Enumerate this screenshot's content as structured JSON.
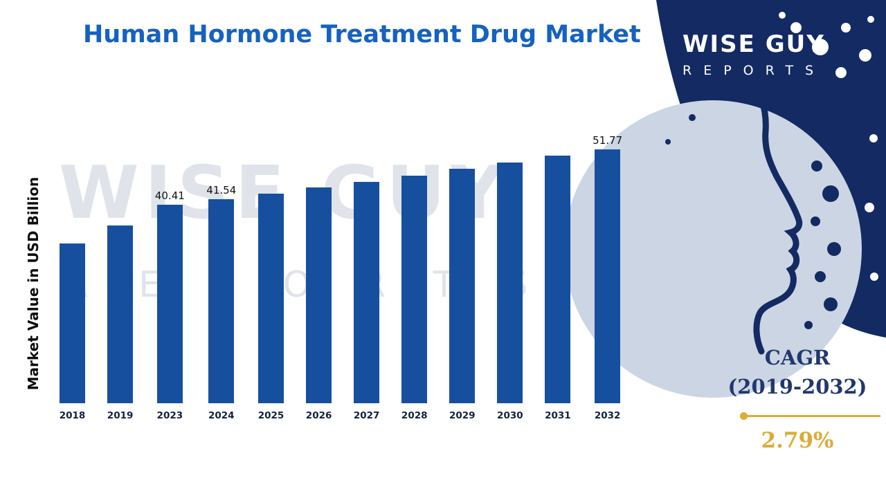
{
  "title": "Human Hormone Treatment Drug Market",
  "logo": {
    "brand_line1": "WISE GUY",
    "brand_line2": "REPORTS"
  },
  "watermark": {
    "line1": "WISE GUY",
    "line2": "REPORTS"
  },
  "chart_data": {
    "type": "bar",
    "title": "Human Hormone Treatment Drug Market",
    "xlabel": "",
    "ylabel": "Market Value in USD Billion",
    "categories": [
      "2018",
      "2019",
      "2023",
      "2024",
      "2025",
      "2026",
      "2027",
      "2028",
      "2029",
      "2030",
      "2031",
      "2032"
    ],
    "values": [
      32.5,
      36.2,
      40.41,
      41.54,
      42.7,
      43.9,
      45.1,
      46.4,
      47.7,
      49.0,
      50.4,
      51.77
    ],
    "data_labels": {
      "2023": "40.41",
      "2024": "41.54",
      "2032": "51.77"
    },
    "ylim": [
      0,
      61
    ],
    "grid": false,
    "legend": "none",
    "bar_color": "#164f9e"
  },
  "cagr": {
    "label": "CAGR",
    "period": "(2019-2032)",
    "value": "2.79%"
  },
  "colors": {
    "title": "#1562c0",
    "navy": "#132a63",
    "bar": "#164f9e",
    "gold": "#dbac38",
    "light_circle": "#ccd5e3",
    "cagr_text": "#21386e",
    "watermark": "#c7cdd8"
  }
}
